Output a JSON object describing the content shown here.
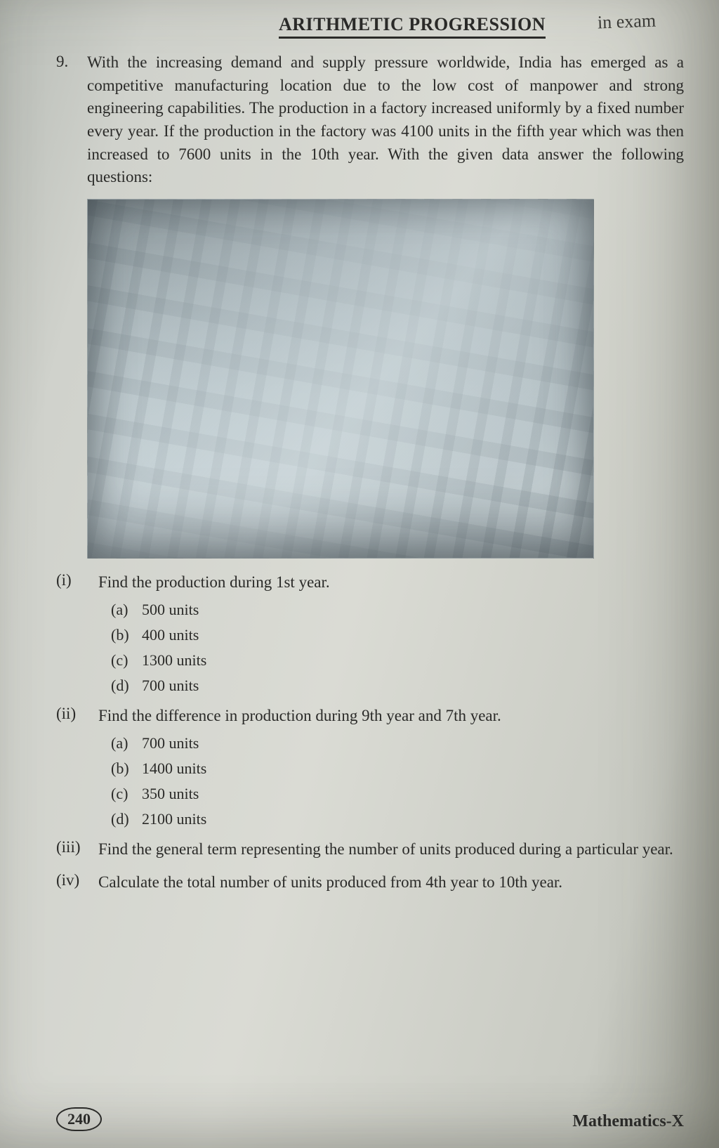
{
  "header": {
    "title": "ARITHMETIC PROGRESSION",
    "handwritten_note": "in exam"
  },
  "question": {
    "number": "9.",
    "text": "With the increasing demand and supply pressure worldwide, India has emerged as a competitive manufacturing location due to the low cost of manpower and strong engineering capabilities. The production in a factory increased uniformly by a fixed number every year. If the production in the factory was 4100 units in the fifth year which was then increased to 7600 units in the 10th year. With the given data answer the following questions:"
  },
  "subquestions": [
    {
      "num": "(i)",
      "text": "Find the production during 1st year.",
      "options": [
        {
          "lbl": "(a)",
          "txt": "500 units"
        },
        {
          "lbl": "(b)",
          "txt": "400 units"
        },
        {
          "lbl": "(c)",
          "txt": "1300 units"
        },
        {
          "lbl": "(d)",
          "txt": "700 units"
        }
      ]
    },
    {
      "num": "(ii)",
      "text": "Find the difference in production during 9th year and 7th year.",
      "options": [
        {
          "lbl": "(a)",
          "txt": "700 units"
        },
        {
          "lbl": "(b)",
          "txt": "1400 units"
        },
        {
          "lbl": "(c)",
          "txt": "350 units"
        },
        {
          "lbl": "(d)",
          "txt": "2100 units"
        }
      ]
    },
    {
      "num": "(iii)",
      "text": "Find the general term representing the number of units produced during a particular year.",
      "options": []
    },
    {
      "num": "(iv)",
      "text": "Calculate the total number of units produced from 4th year to 10th year.",
      "options": []
    }
  ],
  "footer": {
    "page_number": "240",
    "book_label": "Mathematics-X"
  }
}
